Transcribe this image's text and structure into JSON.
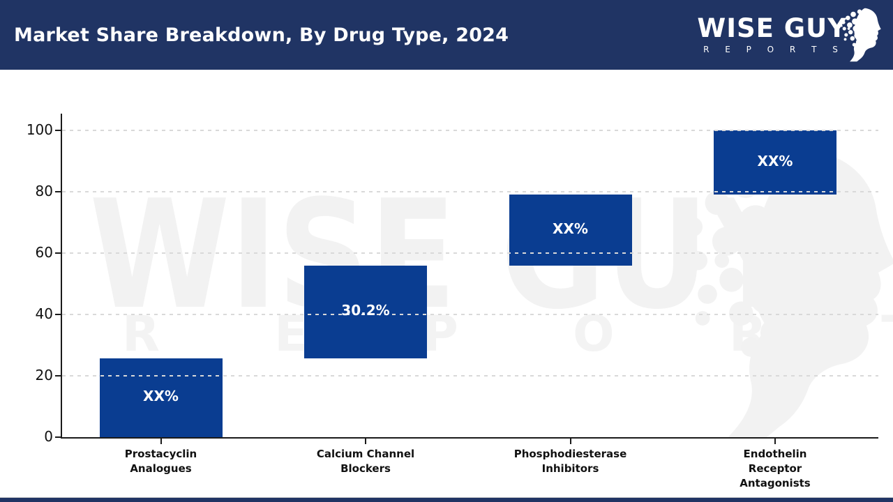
{
  "header": {
    "title": "Market Share Breakdown, By Drug Type, 2024",
    "logo": {
      "name_line": "WISE GUY",
      "sub_line": "R E P O R T S"
    }
  },
  "watermark": {
    "name_line": "WISE GUY",
    "sub_line": "REPORTS"
  },
  "chart_data": {
    "type": "bar",
    "variant": "floating-segment-waterfall",
    "title": "Market Share Breakdown, By Drug Type, 2024",
    "categories": [
      "Prostacyclin Analogues",
      "Calcium Channel Blockers",
      "Phosphodiesterase Inhibitors",
      "Endothelin Receptor Antagonists"
    ],
    "bars": [
      {
        "category_lines": [
          "Prostacyclin",
          "Analogues"
        ],
        "start": 0,
        "end": 25.7,
        "label": "XX%"
      },
      {
        "category_lines": [
          "Calcium Channel",
          "Blockers"
        ],
        "start": 25.7,
        "end": 55.9,
        "label": "30.2%"
      },
      {
        "category_lines": [
          "Phosphodiesterase",
          "Inhibitors"
        ],
        "start": 55.9,
        "end": 79.1,
        "label": "XX%"
      },
      {
        "category_lines": [
          "Endothelin",
          "Receptor",
          "Antagonists"
        ],
        "start": 79.1,
        "end": 100,
        "label": "XX%"
      }
    ],
    "xlabel": "",
    "ylabel": "",
    "ylim": [
      0,
      100
    ],
    "yticks": [
      0,
      20,
      40,
      60,
      80,
      100
    ],
    "grid": "horizontal dashed, drawn over bars",
    "legend": "none",
    "bar_color": "#0a3d91"
  },
  "colors": {
    "header_bg": "#203464",
    "footer_bg": "#203464",
    "bar": "#0a3d91",
    "gridline": "#d9d9d9",
    "axis": "#1a1a1a",
    "watermark": "#f2f2f2"
  }
}
